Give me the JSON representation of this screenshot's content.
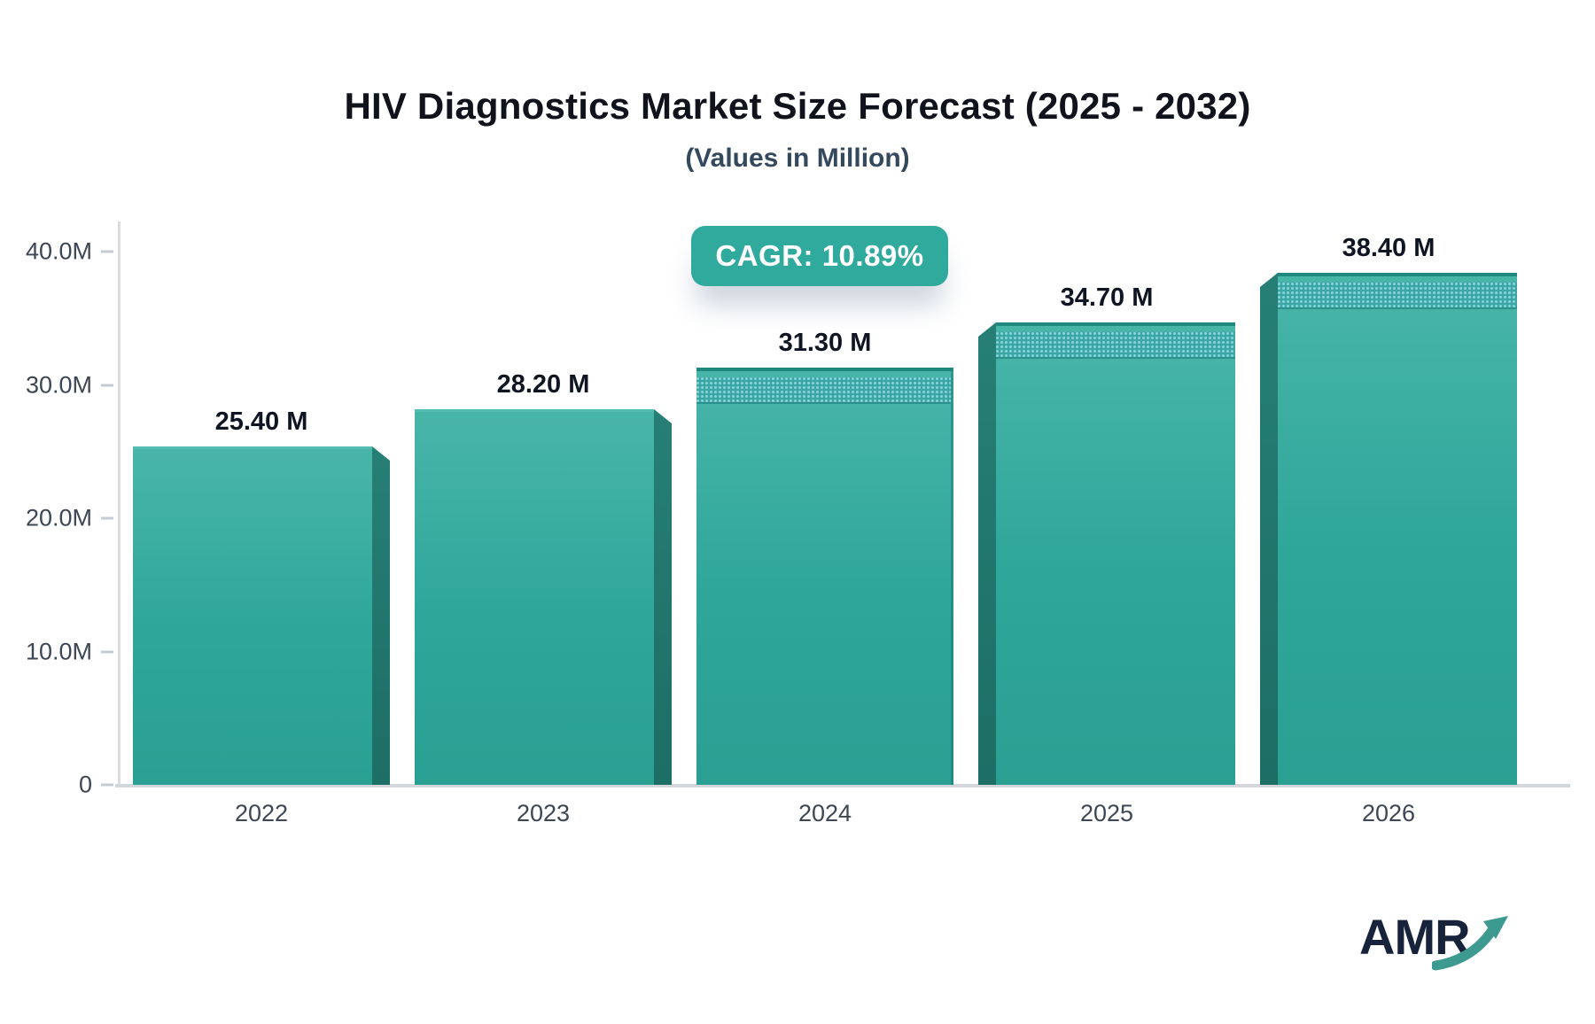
{
  "header": {
    "title": "HIV Diagnostics Market Size Forecast (2025 - 2032)",
    "subtitle": "(Values in Million)"
  },
  "badge": {
    "label": "CAGR: 10.89%",
    "bg_color": "#2faa9d",
    "text_color": "#ffffff"
  },
  "chart_data": {
    "type": "bar",
    "title": "HIV Diagnostics Market Size Forecast (2025 - 2032)",
    "subtitle": "(Values in Million)",
    "unit": "Million",
    "cagr_percent": 10.89,
    "categories": [
      "2022",
      "2023",
      "2024",
      "2025",
      "2026"
    ],
    "values": [
      25.4,
      28.2,
      31.3,
      34.7,
      38.4
    ],
    "points": [
      {
        "category": "2022",
        "value": 25.4,
        "display": "25.40 M",
        "bevel": "right",
        "band": false
      },
      {
        "category": "2023",
        "value": 28.2,
        "display": "28.20 M",
        "bevel": "right",
        "band": false
      },
      {
        "category": "2024",
        "value": 31.3,
        "display": "31.30 M",
        "bevel": "none",
        "band": true
      },
      {
        "category": "2025",
        "value": 34.7,
        "display": "34.70 M",
        "bevel": "left",
        "band": true
      },
      {
        "category": "2026",
        "value": 38.4,
        "display": "38.40 M",
        "bevel": "left",
        "band": true
      }
    ],
    "yticks": [
      {
        "label": "40.0M",
        "value": 40
      },
      {
        "label": "30.0M",
        "value": 30
      },
      {
        "label": "20.0M",
        "value": 20
      },
      {
        "label": "10.0M",
        "value": 10
      },
      {
        "label": "0",
        "value": 0
      }
    ],
    "ylim": [
      0,
      40
    ],
    "xlabel": "",
    "ylabel": "",
    "grid": false,
    "legend_position": "none",
    "bar_color": "#2ea69a",
    "bar_bevel_color": "#1f7b70",
    "band_dot_color": "#97deea"
  },
  "logo": {
    "text": "AMR",
    "text_color": "#17233b",
    "arrow_color": "#3d9a90"
  }
}
